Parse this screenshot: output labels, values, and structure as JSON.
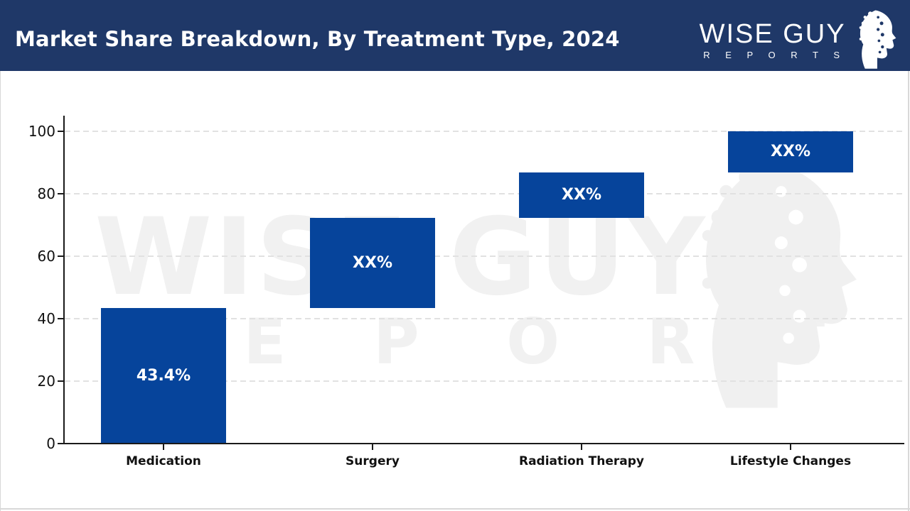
{
  "header": {
    "title": "Market Share Breakdown, By Treatment Type, 2024",
    "bg_color": "#1F3868",
    "logo": {
      "brand_line1": "WISE GUY",
      "brand_line2": "R E P O R T S"
    }
  },
  "watermark": {
    "line1": "WISE GUY",
    "line2": "R E P O R T S"
  },
  "chart_data": {
    "type": "waterfall",
    "title": "Market Share Breakdown, By Treatment Type, 2024",
    "categories": [
      "Medication",
      "Surgery",
      "Radiation Therapy",
      "Lifestyle Changes"
    ],
    "bars": [
      {
        "category": "Medication",
        "label": "43.4%",
        "start": 0,
        "end": 43.4
      },
      {
        "category": "Surgery",
        "label": "XX%",
        "start": 43.4,
        "end": 72.3
      },
      {
        "category": "Radiation Therapy",
        "label": "XX%",
        "start": 72.3,
        "end": 86.9
      },
      {
        "category": "Lifestyle Changes",
        "label": "XX%",
        "start": 86.9,
        "end": 100
      }
    ],
    "ylim": [
      0,
      100
    ],
    "yticks": [
      0,
      20,
      40,
      60,
      80,
      100
    ],
    "xlabel": "",
    "ylabel": "",
    "grid": "horizontal-dashed",
    "legend": "none",
    "bar_color": "#06449B",
    "bar_label_color": "#FFFFFF",
    "axis_color": "#1a1a1a",
    "gridline_color": "#e1e1e1"
  }
}
